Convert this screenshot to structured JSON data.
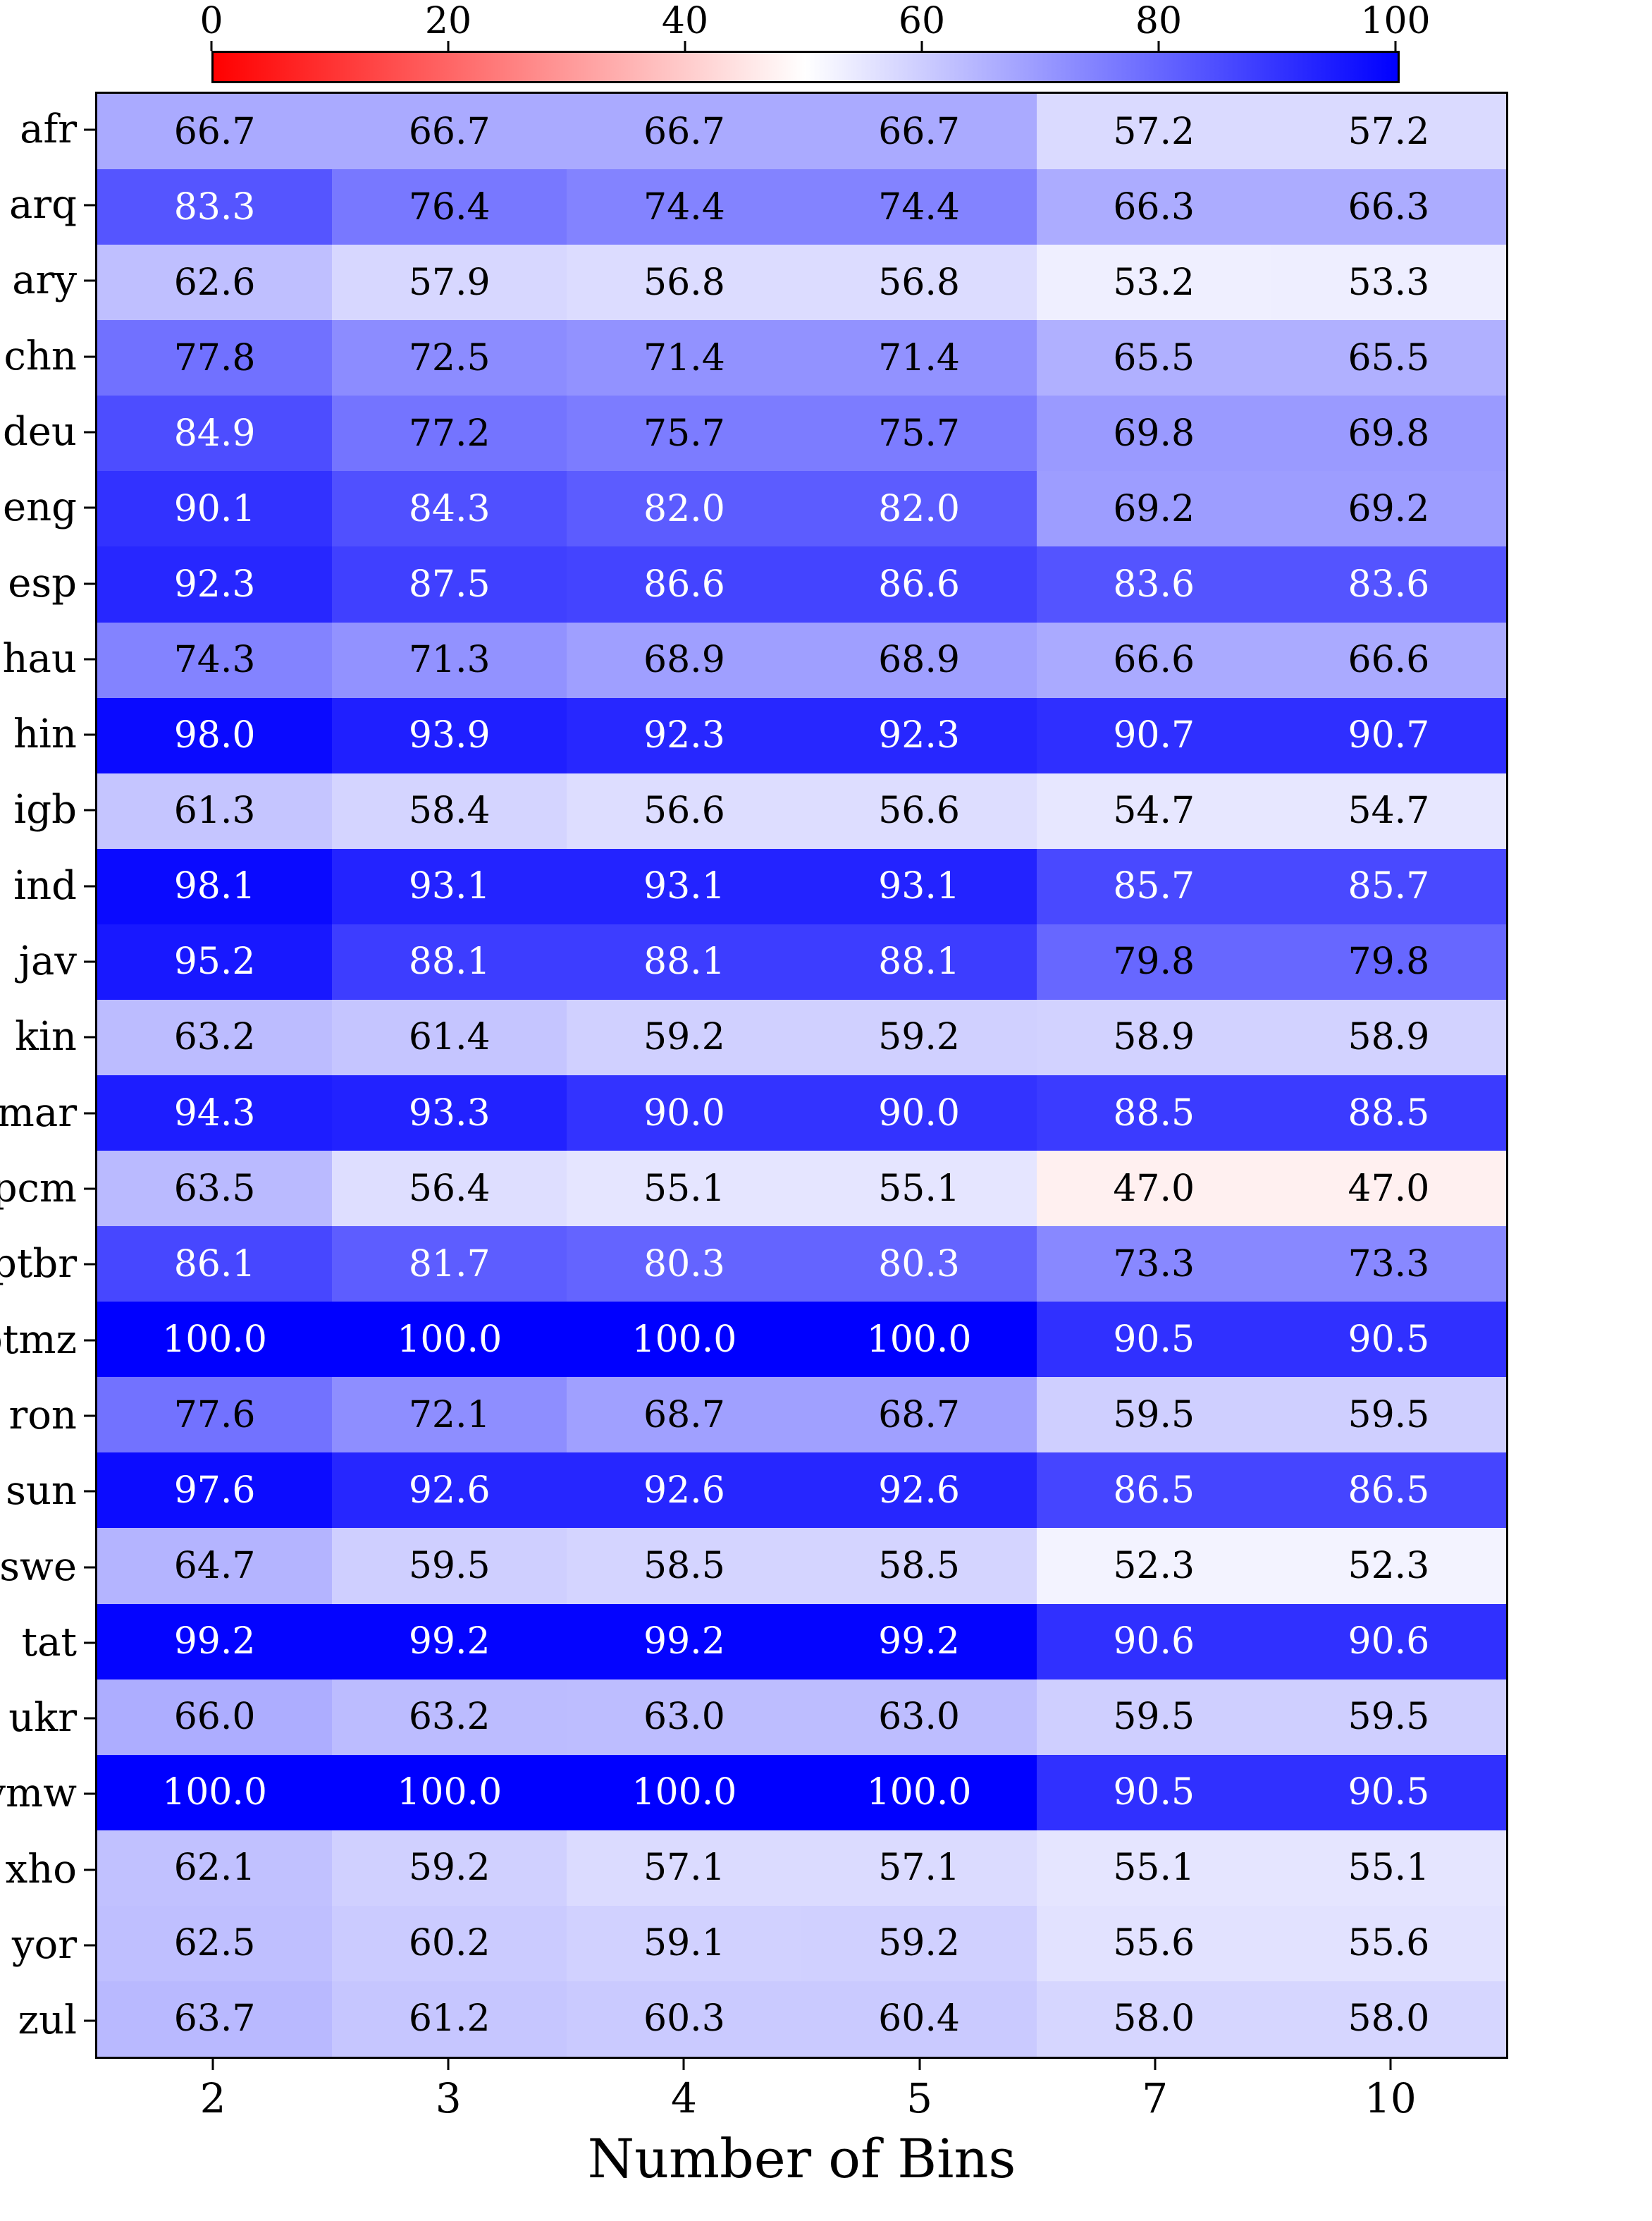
{
  "chart_data": {
    "type": "heatmap",
    "title": "",
    "xlabel": "Number of Bins",
    "ylabel": "",
    "rows": [
      "afr",
      "arq",
      "ary",
      "chn",
      "deu",
      "eng",
      "esp",
      "hau",
      "hin",
      "igb",
      "ind",
      "jav",
      "kin",
      "mar",
      "pcm",
      "ptbr",
      "ptmz",
      "ron",
      "sun",
      "swe",
      "tat",
      "ukr",
      "vmw",
      "xho",
      "yor",
      "zul"
    ],
    "columns": [
      "2",
      "3",
      "4",
      "5",
      "7",
      "10"
    ],
    "values": [
      [
        66.7,
        66.7,
        66.7,
        66.7,
        57.2,
        57.2
      ],
      [
        83.3,
        76.4,
        74.4,
        74.4,
        66.3,
        66.3
      ],
      [
        62.6,
        57.9,
        56.8,
        56.8,
        53.2,
        53.3
      ],
      [
        77.8,
        72.5,
        71.4,
        71.4,
        65.5,
        65.5
      ],
      [
        84.9,
        77.2,
        75.7,
        75.7,
        69.8,
        69.8
      ],
      [
        90.1,
        84.3,
        82.0,
        82.0,
        69.2,
        69.2
      ],
      [
        92.3,
        87.5,
        86.6,
        86.6,
        83.6,
        83.6
      ],
      [
        74.3,
        71.3,
        68.9,
        68.9,
        66.6,
        66.6
      ],
      [
        98.0,
        93.9,
        92.3,
        92.3,
        90.7,
        90.7
      ],
      [
        61.3,
        58.4,
        56.6,
        56.6,
        54.7,
        54.7
      ],
      [
        98.1,
        93.1,
        93.1,
        93.1,
        85.7,
        85.7
      ],
      [
        95.2,
        88.1,
        88.1,
        88.1,
        79.8,
        79.8
      ],
      [
        63.2,
        61.4,
        59.2,
        59.2,
        58.9,
        58.9
      ],
      [
        94.3,
        93.3,
        90.0,
        90.0,
        88.5,
        88.5
      ],
      [
        63.5,
        56.4,
        55.1,
        55.1,
        47.0,
        47.0
      ],
      [
        86.1,
        81.7,
        80.3,
        80.3,
        73.3,
        73.3
      ],
      [
        100.0,
        100.0,
        100.0,
        100.0,
        90.5,
        90.5
      ],
      [
        77.6,
        72.1,
        68.7,
        68.7,
        59.5,
        59.5
      ],
      [
        97.6,
        92.6,
        92.6,
        92.6,
        86.5,
        86.5
      ],
      [
        64.7,
        59.5,
        58.5,
        58.5,
        52.3,
        52.3
      ],
      [
        99.2,
        99.2,
        99.2,
        99.2,
        90.6,
        90.6
      ],
      [
        66.0,
        63.2,
        63.0,
        63.0,
        59.5,
        59.5
      ],
      [
        100.0,
        100.0,
        100.0,
        100.0,
        90.5,
        90.5
      ],
      [
        62.1,
        59.2,
        57.1,
        57.1,
        55.1,
        55.1
      ],
      [
        62.5,
        60.2,
        59.1,
        59.2,
        55.6,
        55.6
      ],
      [
        63.7,
        61.2,
        60.3,
        60.4,
        58.0,
        58.0
      ]
    ],
    "colorbar": {
      "orientation": "horizontal",
      "position": "top",
      "min": 0,
      "max": 100,
      "ticks": [
        "0",
        "20",
        "40",
        "60",
        "80",
        "100"
      ],
      "colormap": "red-white-blue",
      "colors": {
        "low": "#ff0000",
        "mid": "#ffffff",
        "high": "#0000ff"
      }
    },
    "cell_text_white_threshold": 80,
    "grid": false,
    "legend": "none",
    "xlim": null,
    "ylim": null
  }
}
